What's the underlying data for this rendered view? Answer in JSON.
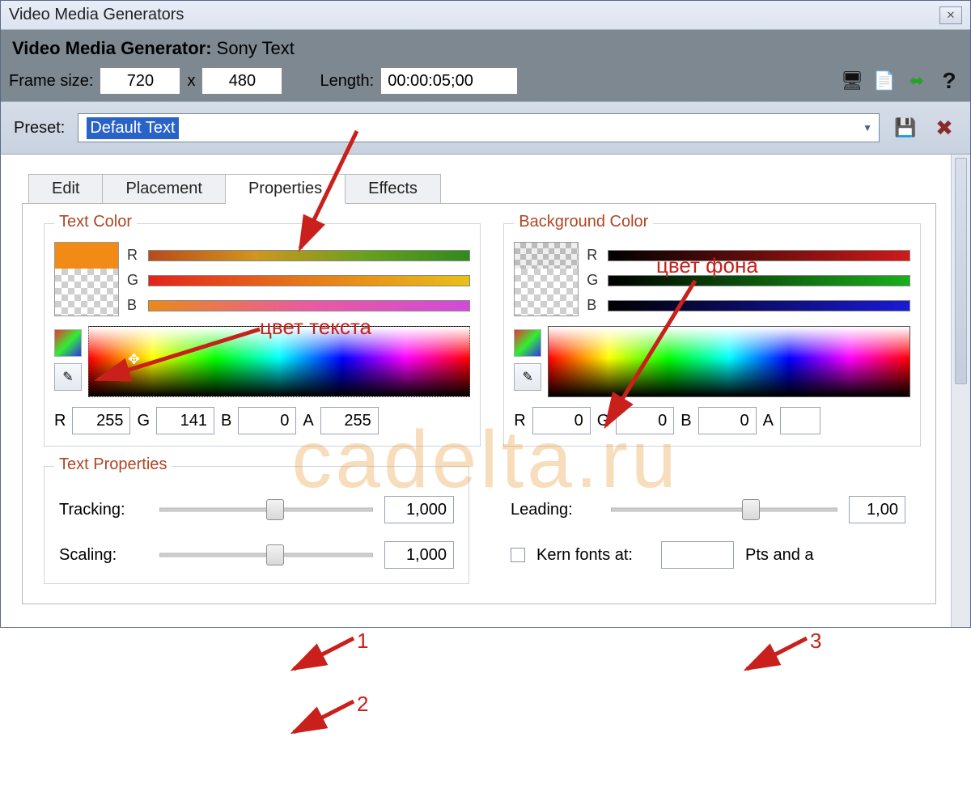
{
  "window": {
    "title": "Video Media Generators"
  },
  "header": {
    "label_prefix": "Video Media Generator:",
    "generator_name": "Sony Text",
    "frame_size_label": "Frame size:",
    "frame_w": "720",
    "frame_x": "x",
    "frame_h": "480",
    "length_label": "Length:",
    "length_value": "00:00:05;00"
  },
  "preset": {
    "label": "Preset:",
    "value": "Default Text"
  },
  "tabs": {
    "items": [
      "Edit",
      "Placement",
      "Properties",
      "Effects"
    ],
    "active_index": 2
  },
  "text_color": {
    "legend": "Text Color",
    "swatch_top_color": "#f28a16",
    "channels": [
      "R",
      "G",
      "B"
    ],
    "r": "255",
    "g": "141",
    "b": "0",
    "a": "255",
    "r_label": "R",
    "g_label": "G",
    "b_label": "B",
    "a_label": "A"
  },
  "bg_color": {
    "legend": "Background Color",
    "swatch_top_color": "#3a3a3a",
    "channels": [
      "R",
      "G",
      "B"
    ],
    "r": "0",
    "g": "0",
    "b": "0",
    "a": "",
    "r_label": "R",
    "g_label": "G",
    "b_label": "B",
    "a_label": "A"
  },
  "text_props": {
    "legend": "Text Properties",
    "tracking_label": "Tracking:",
    "tracking_value": "1,000",
    "tracking_thumb_pct": 50,
    "scaling_label": "Scaling:",
    "scaling_value": "1,000",
    "scaling_thumb_pct": 50,
    "leading_label": "Leading:",
    "leading_value": "1,00",
    "leading_thumb_pct": 58,
    "kern_label": "Kern fonts at:",
    "kern_value": "",
    "kern_suffix": "Pts and a"
  },
  "annotations": {
    "text_color": "цвет текста",
    "bg_color": "цвет фона",
    "n1": "1",
    "n2": "2",
    "n3": "3"
  },
  "watermark": "cadelta.ru",
  "colors": {
    "annotation": "#c9201b",
    "legend": "#b04522"
  }
}
